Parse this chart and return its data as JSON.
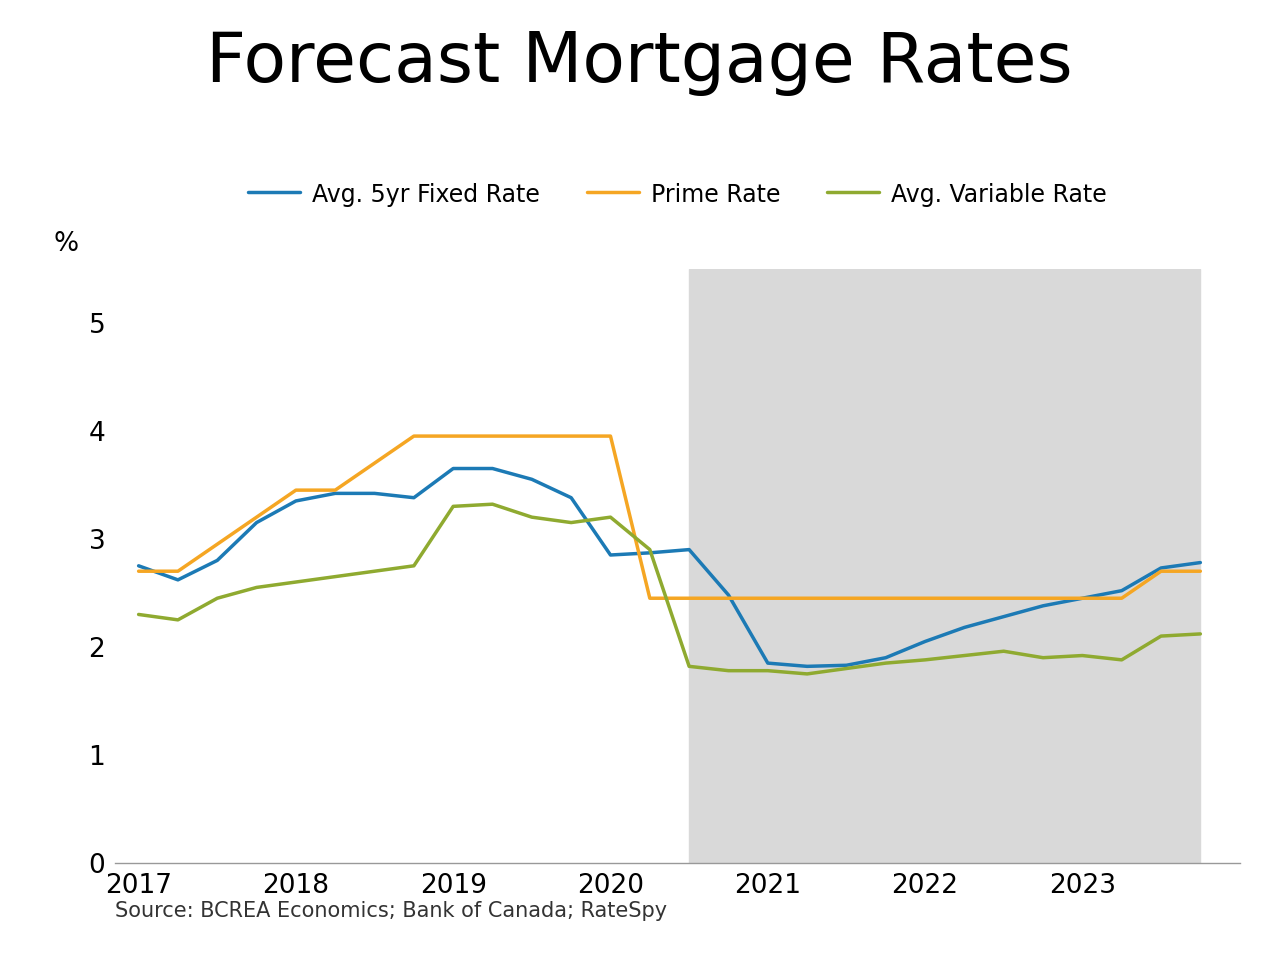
{
  "title": "Forecast Mortgage Rates",
  "source": "Source: BCREA Economics; Bank of Canada; RateSpy",
  "ylabel": "%",
  "ylim": [
    0,
    5.5
  ],
  "yticks": [
    0,
    1,
    2,
    3,
    4,
    5
  ],
  "forecast_start": 2020.5,
  "forecast_end": 2023.75,
  "forecast_color": "#d9d9d9",
  "background_color": "#ffffff",
  "fixed_rate": {
    "label": "Avg. 5yr Fixed Rate",
    "color": "#1c7ab5",
    "x": [
      2017.0,
      2017.25,
      2017.5,
      2017.75,
      2018.0,
      2018.25,
      2018.5,
      2018.75,
      2019.0,
      2019.25,
      2019.5,
      2019.75,
      2020.0,
      2020.25,
      2020.5,
      2020.75,
      2021.0,
      2021.25,
      2021.5,
      2021.75,
      2022.0,
      2022.25,
      2022.5,
      2022.75,
      2023.0,
      2023.25,
      2023.5,
      2023.75
    ],
    "y": [
      2.75,
      2.62,
      2.8,
      3.15,
      3.35,
      3.42,
      3.42,
      3.38,
      3.65,
      3.65,
      3.55,
      3.38,
      2.85,
      2.87,
      2.9,
      2.48,
      1.85,
      1.82,
      1.83,
      1.9,
      2.05,
      2.18,
      2.28,
      2.38,
      2.45,
      2.52,
      2.73,
      2.78
    ]
  },
  "prime_rate": {
    "label": "Prime Rate",
    "color": "#f5a623",
    "x": [
      2017.0,
      2017.25,
      2017.5,
      2017.75,
      2018.0,
      2018.25,
      2018.5,
      2018.75,
      2019.0,
      2019.25,
      2019.5,
      2019.75,
      2020.0,
      2020.25,
      2020.5,
      2020.75,
      2021.0,
      2021.25,
      2021.5,
      2021.75,
      2022.0,
      2022.25,
      2022.5,
      2022.75,
      2023.0,
      2023.25,
      2023.5,
      2023.75
    ],
    "y": [
      2.7,
      2.7,
      2.95,
      3.2,
      3.45,
      3.45,
      3.7,
      3.95,
      3.95,
      3.95,
      3.95,
      3.95,
      3.95,
      2.45,
      2.45,
      2.45,
      2.45,
      2.45,
      2.45,
      2.45,
      2.45,
      2.45,
      2.45,
      2.45,
      2.45,
      2.45,
      2.7,
      2.7
    ]
  },
  "variable_rate": {
    "label": "Avg. Variable Rate",
    "color": "#8faa30",
    "x": [
      2017.0,
      2017.25,
      2017.5,
      2017.75,
      2018.0,
      2018.25,
      2018.5,
      2018.75,
      2019.0,
      2019.25,
      2019.5,
      2019.75,
      2020.0,
      2020.25,
      2020.5,
      2020.75,
      2021.0,
      2021.25,
      2021.5,
      2021.75,
      2022.0,
      2022.25,
      2022.5,
      2022.75,
      2023.0,
      2023.25,
      2023.5,
      2023.75
    ],
    "y": [
      2.3,
      2.25,
      2.45,
      2.55,
      2.6,
      2.65,
      2.7,
      2.75,
      3.3,
      3.32,
      3.2,
      3.15,
      3.2,
      2.9,
      1.82,
      1.78,
      1.78,
      1.75,
      1.8,
      1.85,
      1.88,
      1.92,
      1.96,
      1.9,
      1.92,
      1.88,
      2.1,
      2.12
    ]
  },
  "xticks": [
    2017,
    2018,
    2019,
    2020,
    2021,
    2022,
    2023
  ],
  "xlim": [
    2016.85,
    2024.0
  ],
  "linewidth": 2.5,
  "title_fontsize": 50,
  "legend_fontsize": 17,
  "tick_fontsize": 19,
  "source_fontsize": 15
}
